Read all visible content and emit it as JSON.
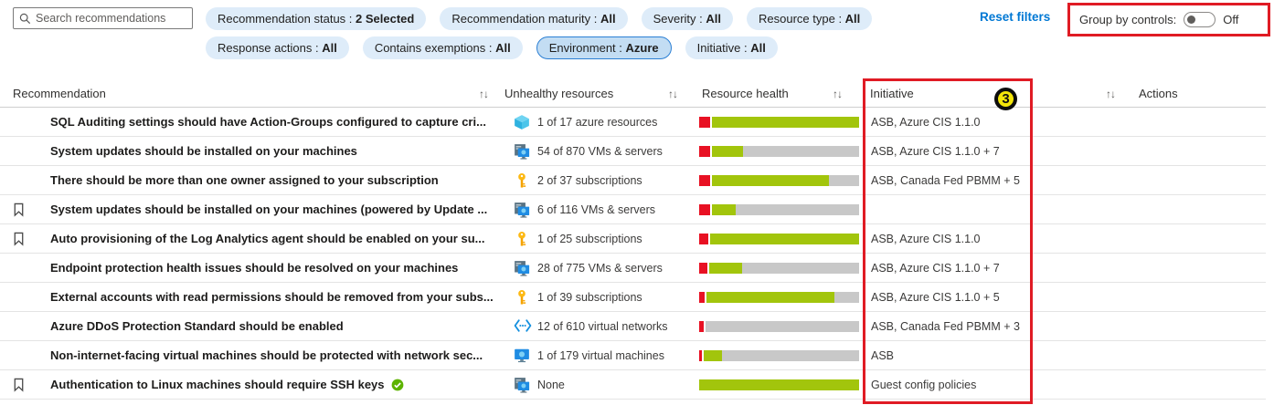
{
  "search": {
    "placeholder": "Search recommendations"
  },
  "filters": {
    "separator": " : ",
    "row1": [
      {
        "label": "Recommendation status",
        "value": "2 Selected"
      },
      {
        "label": "Recommendation maturity",
        "value": "All"
      },
      {
        "label": "Severity",
        "value": "All"
      },
      {
        "label": "Resource type",
        "value": "All"
      }
    ],
    "row2": [
      {
        "label": "Response actions",
        "value": "All"
      },
      {
        "label": "Contains exemptions",
        "value": "All"
      },
      {
        "label": "Environment",
        "value": "Azure",
        "selected": true
      },
      {
        "label": "Initiative",
        "value": "All"
      }
    ],
    "reset_label": "Reset filters",
    "group_by": {
      "label": "Group by controls:",
      "state": "Off"
    }
  },
  "table": {
    "sort_icon": "↑↓",
    "columns": {
      "recommendation": "Recommendation",
      "unhealthy": "Unhealthy resources",
      "health": "Resource health",
      "initiative": "Initiative",
      "actions": "Actions"
    },
    "rows": [
      {
        "bookmarked": false,
        "title": "SQL Auditing settings should have Action-Groups configured to capture cri...",
        "icon": "azure-resource",
        "unhealthy": "1 of 17 azure resources",
        "bar": {
          "red": 12,
          "green": 161,
          "gray": 0
        },
        "initiative": "ASB, Azure CIS 1.1.0",
        "verified": false
      },
      {
        "bookmarked": false,
        "title": "System updates should be installed on your machines",
        "icon": "vm-servers",
        "unhealthy": "54 of 870 VMs & servers",
        "bar": {
          "red": 12,
          "green": 34,
          "gray": 127
        },
        "initiative": "ASB, Azure CIS 1.1.0 + 7",
        "verified": false
      },
      {
        "bookmarked": false,
        "title": "There should be more than one owner assigned to your subscription",
        "icon": "subscription-key",
        "unhealthy": "2 of 37 subscriptions",
        "bar": {
          "red": 12,
          "green": 128,
          "gray": 33
        },
        "initiative": "ASB, Canada Fed PBMM + 5",
        "verified": false
      },
      {
        "bookmarked": true,
        "title": "System updates should be installed on your machines (powered by Update ...",
        "icon": "vm-servers",
        "unhealthy": "6 of 116 VMs & servers",
        "bar": {
          "red": 12,
          "green": 26,
          "gray": 135
        },
        "initiative": "",
        "verified": false
      },
      {
        "bookmarked": true,
        "title": "Auto provisioning of the Log Analytics agent should be enabled on your su...",
        "icon": "subscription-key",
        "unhealthy": "1 of 25 subscriptions",
        "bar": {
          "red": 10,
          "green": 163,
          "gray": 0
        },
        "initiative": "ASB, Azure CIS 1.1.0",
        "verified": false
      },
      {
        "bookmarked": false,
        "title": "Endpoint protection health issues should be resolved on your machines",
        "icon": "vm-servers",
        "unhealthy": "28 of 775 VMs & servers",
        "bar": {
          "red": 9,
          "green": 36,
          "gray": 128
        },
        "initiative": "ASB, Azure CIS 1.1.0 + 7",
        "verified": false
      },
      {
        "bookmarked": false,
        "title": "External accounts with read permissions should be removed from your subs...",
        "icon": "subscription-key",
        "unhealthy": "1 of 39 subscriptions",
        "bar": {
          "red": 6,
          "green": 140,
          "gray": 27
        },
        "initiative": "ASB, Azure CIS 1.1.0 + 5",
        "verified": false
      },
      {
        "bookmarked": false,
        "title": "Azure DDoS Protection Standard should be enabled",
        "icon": "virtual-network",
        "unhealthy": "12 of 610 virtual networks",
        "bar": {
          "red": 5,
          "green": 0,
          "gray": 168
        },
        "initiative": "ASB, Canada Fed PBMM + 3",
        "verified": false
      },
      {
        "bookmarked": false,
        "title": "Non-internet-facing virtual machines should be protected with network sec...",
        "icon": "virtual-machine",
        "unhealthy": "1 of 179 virtual machines",
        "bar": {
          "red": 3,
          "green": 20,
          "gray": 150
        },
        "initiative": "ASB",
        "verified": false
      },
      {
        "bookmarked": true,
        "title": "Authentication to Linux machines should require SSH keys",
        "icon": "vm-servers",
        "unhealthy": "None",
        "bar": {
          "red": 0,
          "green": 175,
          "gray": 0
        },
        "initiative": "Guest config policies",
        "verified": true
      }
    ]
  },
  "annotations": {
    "badge": "3"
  },
  "colors": {
    "accent": "#0078d4",
    "annotation_red": "#e01b24",
    "badge_yellow": "#f3e50a",
    "bar_red": "#e81123",
    "bar_green": "#a2c50c",
    "bar_gray": "#c8c8c8",
    "check_green": "#5db300"
  }
}
